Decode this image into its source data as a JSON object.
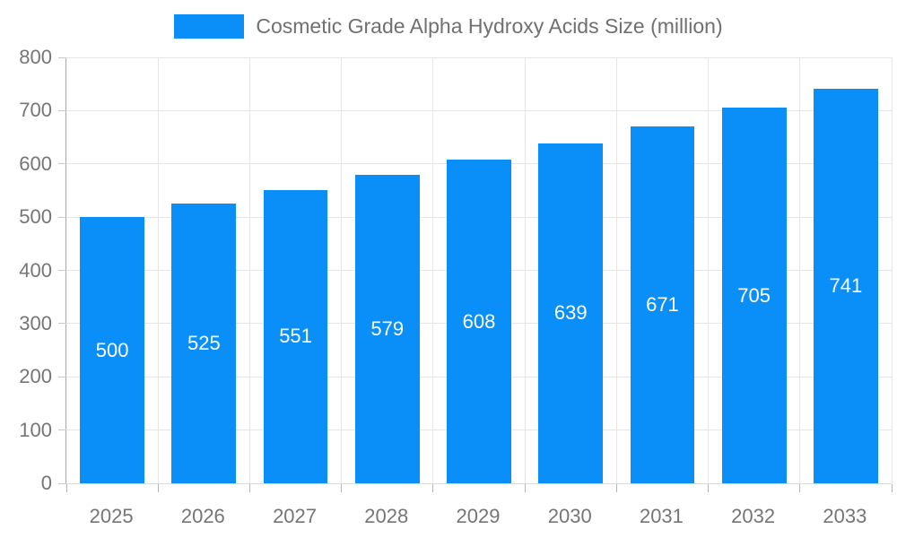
{
  "chart_data": {
    "type": "bar",
    "title": "Cosmetic Grade Alpha Hydroxy Acids Size (million)",
    "categories": [
      "2025",
      "2026",
      "2027",
      "2028",
      "2029",
      "2030",
      "2031",
      "2032",
      "2033"
    ],
    "values": [
      500,
      525,
      551,
      579,
      608,
      639,
      671,
      705,
      741
    ],
    "series": [
      {
        "name": "Cosmetic Grade Alpha Hydroxy Acids Size (million)",
        "values": [
          500,
          525,
          551,
          579,
          608,
          639,
          671,
          705,
          741
        ]
      }
    ],
    "xlabel": "",
    "ylabel": "",
    "ylim": [
      0,
      800
    ],
    "ytick_step": 100,
    "yticks": [
      0,
      100,
      200,
      300,
      400,
      500,
      600,
      700,
      800
    ],
    "grid": "horizontal and vertical gridlines on",
    "legend_position": "top-center",
    "data_labels": "white values centered inside bars"
  },
  "legend": {
    "label": "Cosmetic Grade Alpha Hydroxy Acids Size (million)"
  },
  "colors": {
    "bar": "#0a8ff9",
    "legend_text": "#707070",
    "axis_text": "#757575",
    "gridline": "#e6e6e6",
    "y_axis_line": "#a8a8a8",
    "data_label": "#ffffff",
    "background": "#ffffff"
  }
}
